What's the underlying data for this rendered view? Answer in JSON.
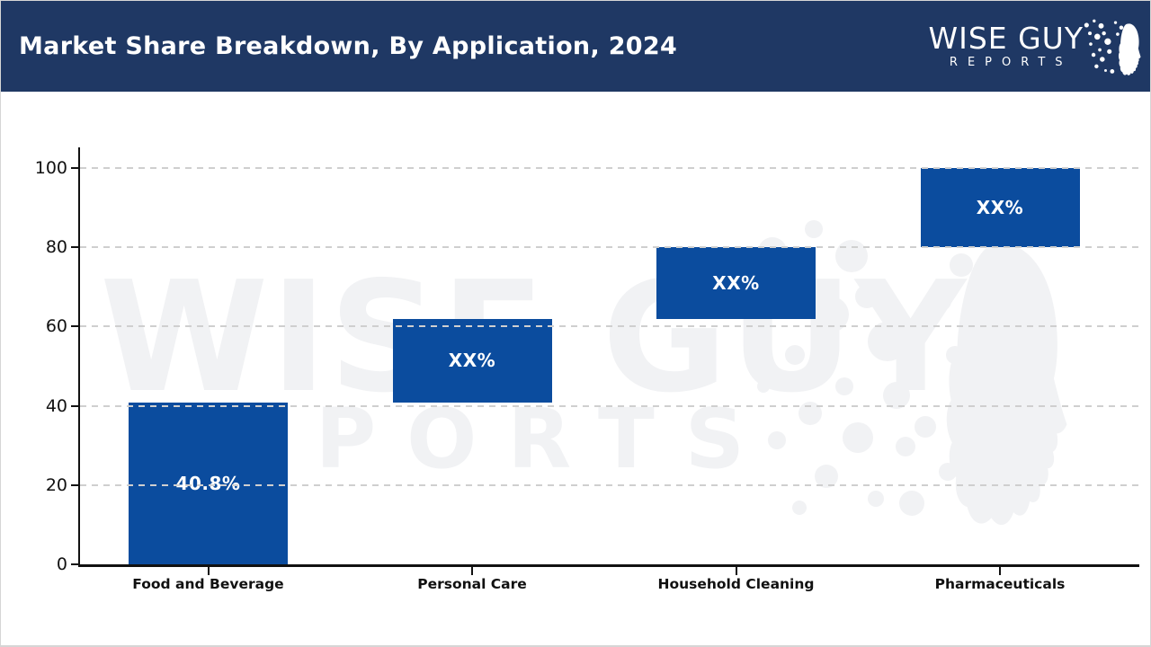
{
  "header": {
    "title": "Market Share Breakdown, By Application, 2024",
    "brand": {
      "name": "WISE GUY",
      "tagline": "REPORTS",
      "icon": "dotted-face-profile"
    }
  },
  "watermark": {
    "line1": "WISE GUY",
    "line2": "REPORTS",
    "icon": "dotted-face-profile"
  },
  "chart_data": {
    "type": "bar",
    "variant": "waterfall",
    "title": "Market Share Breakdown, By Application, 2024",
    "categories": [
      "Food and Beverage",
      "Personal Care",
      "Household Cleaning",
      "Pharmaceuticals"
    ],
    "segments": [
      {
        "category": "Food and Beverage",
        "start": 0,
        "end": 40.8,
        "label": "40.8%"
      },
      {
        "category": "Personal Care",
        "start": 40.8,
        "end": 62,
        "label": "XX%"
      },
      {
        "category": "Household Cleaning",
        "start": 62,
        "end": 80,
        "label": "XX%"
      },
      {
        "category": "Pharmaceuticals",
        "start": 80,
        "end": 100,
        "label": "XX%"
      }
    ],
    "xlabel": "",
    "ylabel": "",
    "yticks": [
      0,
      20,
      40,
      60,
      80,
      100
    ],
    "ylim": [
      0,
      105
    ],
    "grid": {
      "horizontal": true,
      "style": "dashed",
      "drawn_over_bars": true
    },
    "legend": "none"
  },
  "colors": {
    "header_bg": "#1f3864",
    "bar": "#0b4c9e",
    "bar_label": "#ffffff",
    "axis": "#111111",
    "grid": "#cfcfcf",
    "watermark": "#f1f2f4",
    "page_bg": "#ffffff",
    "page_border": "#d6d6d6"
  }
}
